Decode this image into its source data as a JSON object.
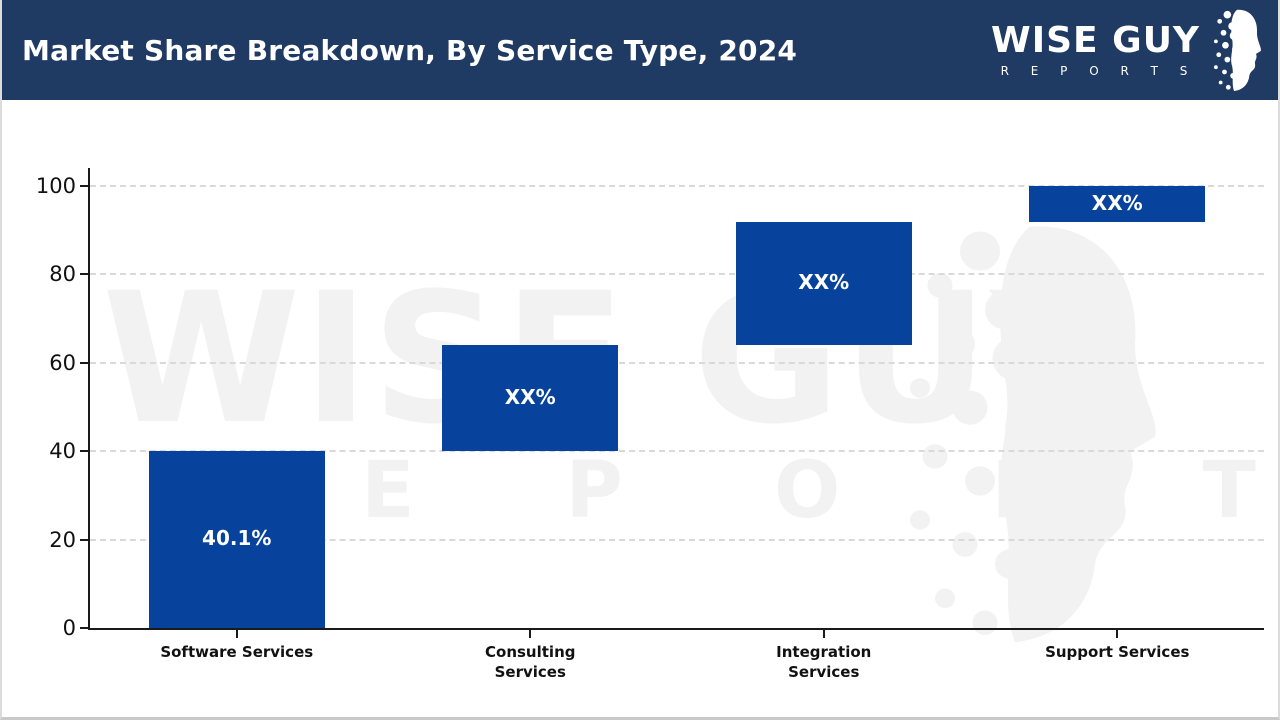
{
  "header": {
    "title": "Market Share Breakdown, By Service Type, 2024",
    "logo": {
      "line1": "WISE GUY",
      "line2": "R E P O R T S"
    }
  },
  "watermark": {
    "line1": "WISE GUY",
    "line2": "R E P O R T S"
  },
  "chart_data": {
    "type": "bar",
    "subtype": "waterfall",
    "title": "Market Share Breakdown, By Service Type, 2024",
    "categories": [
      "Software Services",
      "Consulting\nServices",
      "Integration\nServices",
      "Support Services"
    ],
    "segments": [
      {
        "category": "Software Services",
        "start": 0,
        "end": 40.1,
        "label": "40.1%"
      },
      {
        "category": "Consulting Services",
        "start": 40.1,
        "end": 64.1,
        "label": "XX%"
      },
      {
        "category": "Integration Services",
        "start": 64.1,
        "end": 91.9,
        "label": "XX%"
      },
      {
        "category": "Support Services",
        "start": 91.9,
        "end": 100,
        "label": "XX%"
      }
    ],
    "yticks": [
      0,
      20,
      40,
      60,
      80,
      100
    ],
    "ylim": [
      0,
      104
    ],
    "xlabel": "",
    "ylabel": "",
    "grid": "horizontal-dashed",
    "legend": "none",
    "bar_color": "#07439c",
    "bar_label_color": "#ffffff",
    "axis_color": "#1a1a1a",
    "grid_color": "#d9d9d9"
  },
  "colors": {
    "header_bg": "#1f3a63",
    "watermark": "#f2f2f2",
    "text_on_dark": "#ffffff"
  }
}
